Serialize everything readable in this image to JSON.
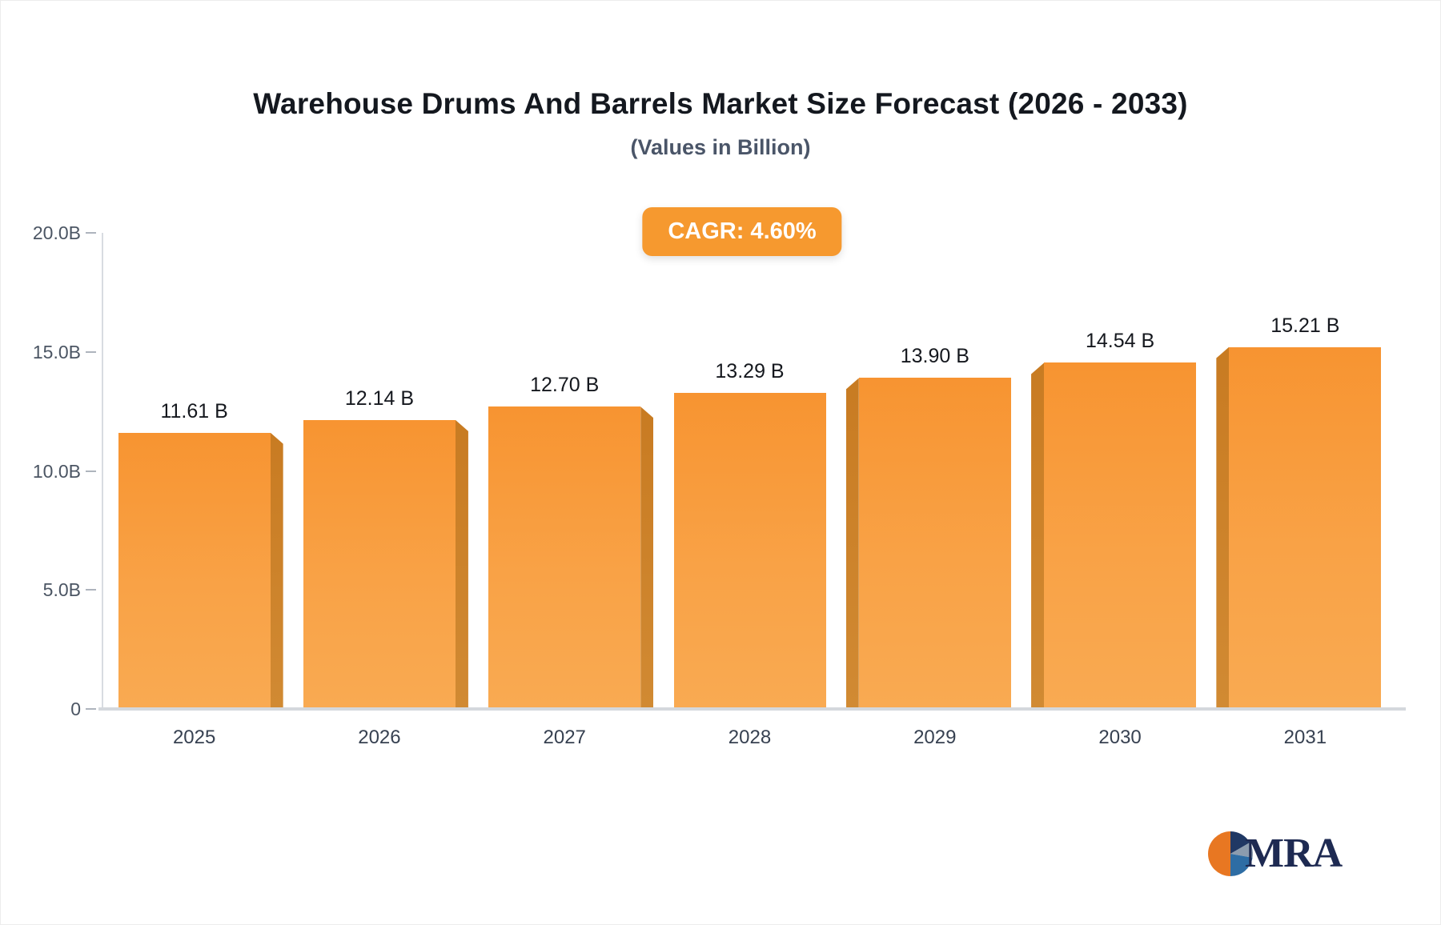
{
  "header": {
    "title": "Warehouse Drums And Barrels Market Size Forecast (2026 - 2033)",
    "subtitle": "(Values in Billion)"
  },
  "badge": {
    "label": "CAGR: 4.60%",
    "color": "#f6992f"
  },
  "chart_data": {
    "type": "bar",
    "categories": [
      "2025",
      "2026",
      "2027",
      "2028",
      "2029",
      "2030",
      "2031"
    ],
    "values": [
      11.61,
      12.14,
      12.7,
      13.29,
      13.9,
      14.54,
      15.21
    ],
    "value_labels": [
      "11.61 B",
      "12.14 B",
      "12.70 B",
      "13.29 B",
      "13.90 B",
      "14.54 B",
      "15.21 B"
    ],
    "title": "Warehouse Drums And Barrels Market Size Forecast (2026 - 2033)",
    "xlabel": "",
    "ylabel": "",
    "ylim": [
      0,
      20
    ],
    "yticks": [
      0,
      5,
      10,
      15,
      20
    ],
    "ytick_labels": [
      "0",
      "5.0B",
      "10.0B",
      "15.0B",
      "20.0B"
    ],
    "grid": "off",
    "legend": "none",
    "bar_color": "#f79431",
    "bar_side_color": "#c87b22"
  },
  "logo": {
    "text": "MRA",
    "circle_colors": {
      "left": "#e87722",
      "top_right": "#203864",
      "mid_right": "#8c9cae",
      "bottom_right": "#2e6da4"
    }
  }
}
